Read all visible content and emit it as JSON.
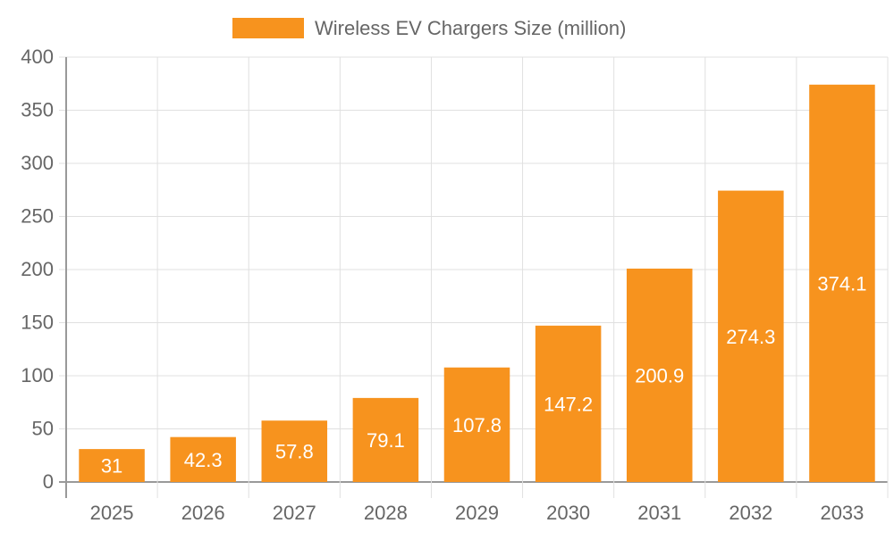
{
  "chart_data": {
    "type": "bar",
    "title": "",
    "xlabel": "",
    "ylabel": "",
    "categories": [
      "2025",
      "2026",
      "2027",
      "2028",
      "2029",
      "2030",
      "2031",
      "2032",
      "2033"
    ],
    "series": [
      {
        "name": "Wireless EV Chargers Size (million)",
        "values": [
          31,
          42.3,
          57.8,
          79.1,
          107.8,
          147.2,
          200.9,
          274.3,
          374.1
        ],
        "color": "#f7931e"
      }
    ],
    "ylim": [
      0,
      400
    ],
    "yticks": [
      0,
      50,
      100,
      150,
      200,
      250,
      300,
      350,
      400
    ],
    "grid": true,
    "legend": "top-center",
    "data_labels": true,
    "colors": {
      "bar": "#f7931e",
      "label": "#ffffff",
      "text": "#666666",
      "grid": "#e0e0e0",
      "axis": "#999999"
    }
  }
}
